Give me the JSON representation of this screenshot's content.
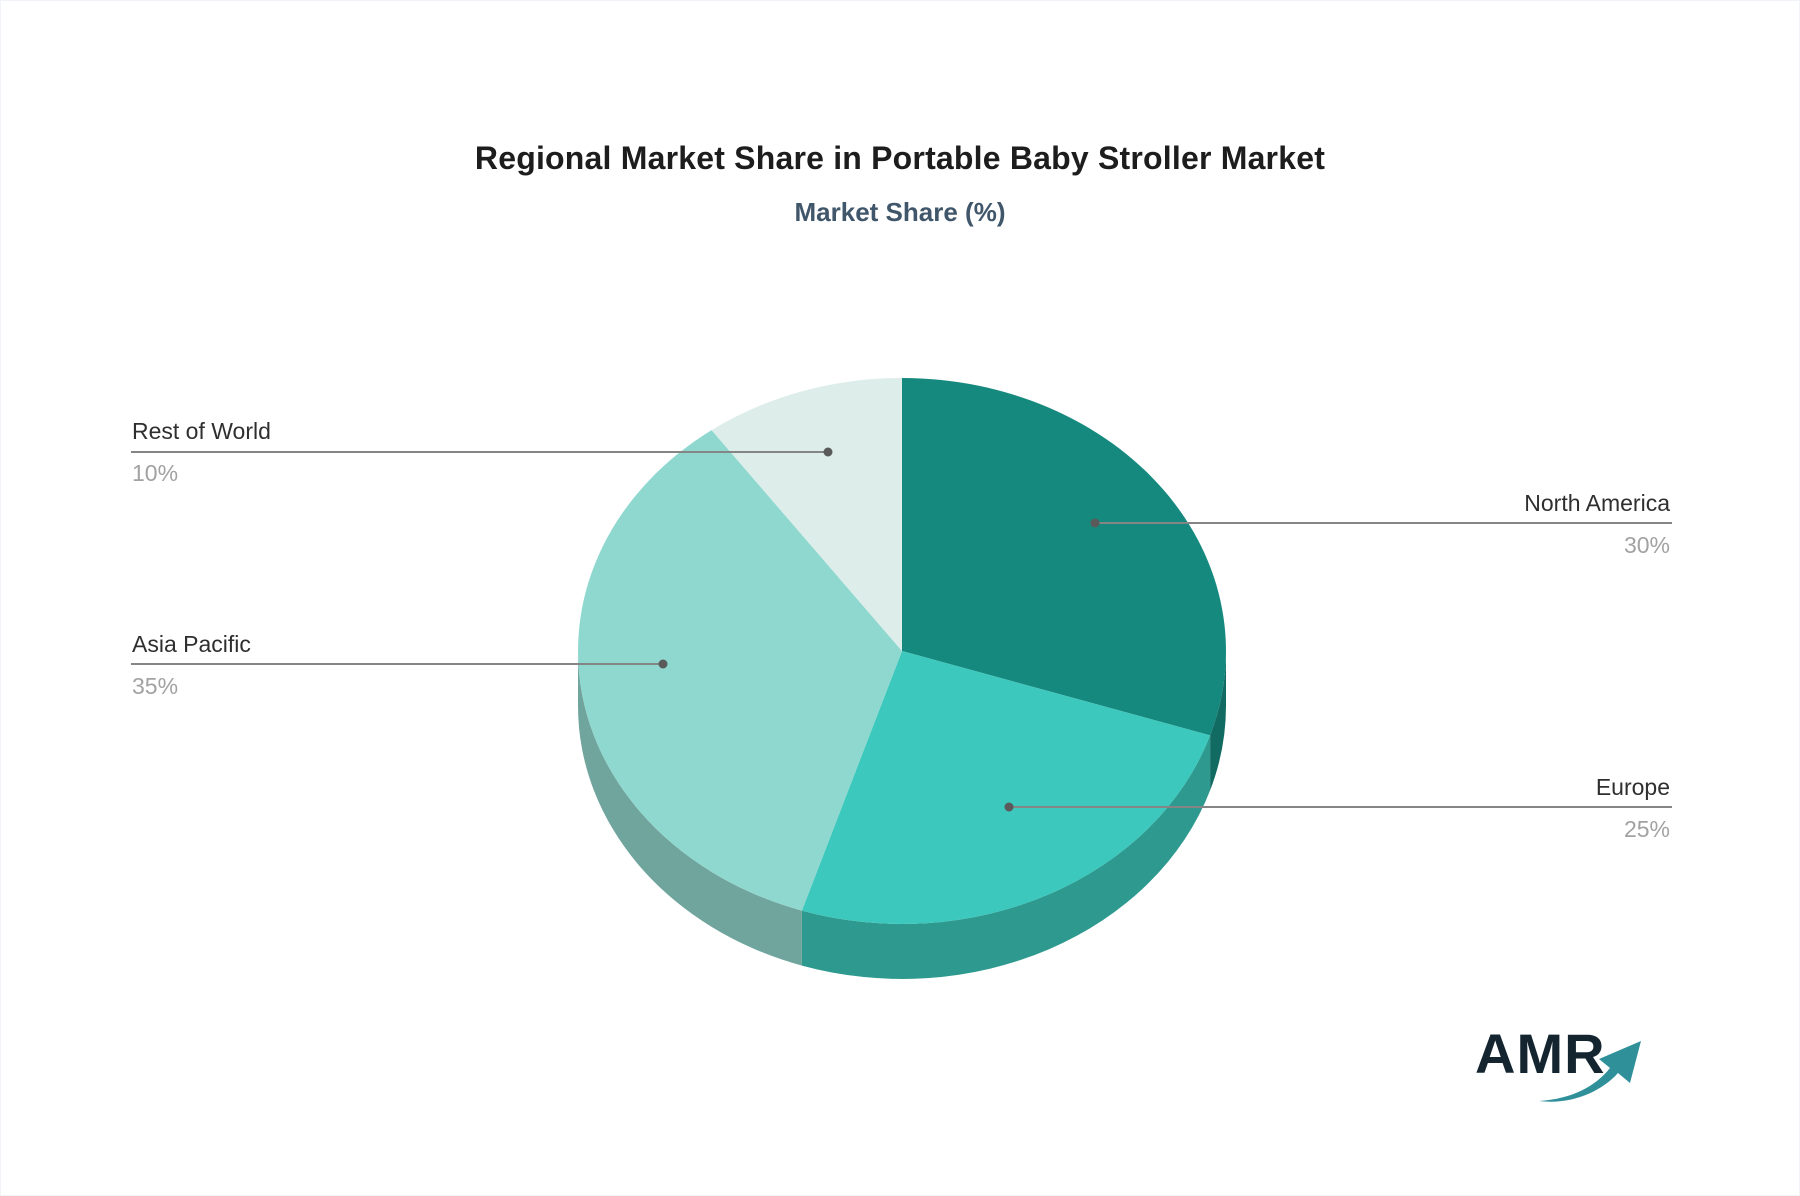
{
  "chart_data": {
    "type": "pie",
    "style": "3d",
    "unit": "%",
    "title": "Regional Market Share in Portable Baby Stroller Market",
    "subtitle": "Market Share (%)",
    "start_angle_deg": 0,
    "clockwise": true,
    "slices": [
      {
        "label": "North America",
        "value": 30,
        "pct_label": "30%",
        "color": "#16897e",
        "rim_color": "#126b62",
        "side": "right",
        "dot": [
          1094,
          522
        ]
      },
      {
        "label": "Europe",
        "value": 25,
        "pct_label": "25%",
        "color": "#3cc8bc",
        "rim_color": "#2e9a8f",
        "side": "right",
        "dot": [
          1008,
          806
        ]
      },
      {
        "label": "Asia Pacific",
        "value": 35,
        "pct_label": "35%",
        "color": "#8fd8cf",
        "rim_color": "#70a59d",
        "side": "left",
        "dot": [
          662,
          663
        ]
      },
      {
        "label": "Rest of World",
        "value": 10,
        "pct_label": "10%",
        "color": "#dcedea",
        "rim_color": "#b9d8d2",
        "side": "left",
        "dot": [
          827,
          451
        ]
      }
    ],
    "layout_hints": {
      "legend": "none",
      "callouts": "leader-lines",
      "label_color": "#2f2f2f",
      "pct_color": "#a2a2a2",
      "line_color": "#858585",
      "dot_color": "#5a5a5a",
      "background": "#ffffff"
    }
  },
  "logo": {
    "text": "AMR",
    "color": "#142530",
    "arrow_color": "#30909a"
  }
}
